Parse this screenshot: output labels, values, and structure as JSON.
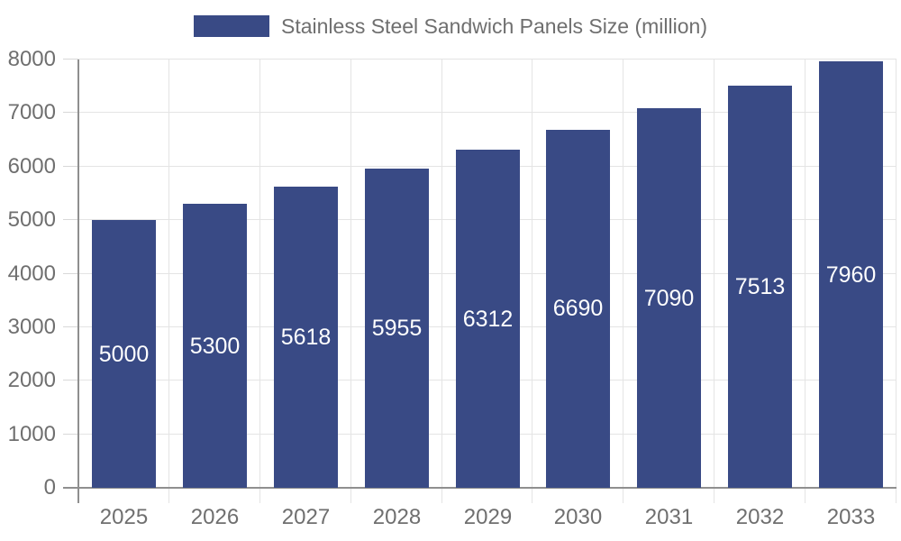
{
  "chart_data": {
    "type": "bar",
    "title": "Stainless Steel Sandwich Panels Size (million)",
    "categories": [
      "2025",
      "2026",
      "2027",
      "2028",
      "2029",
      "2030",
      "2031",
      "2032",
      "2033"
    ],
    "values": [
      5000,
      5300,
      5618,
      5955,
      6312,
      6690,
      7090,
      7513,
      7960
    ],
    "xlabel": "",
    "ylabel": "",
    "ylim": [
      0,
      8000
    ],
    "ytick_step": 1000,
    "grid": true,
    "legend_position": "top-center",
    "value_labels": "centered-inside-bars",
    "colors": {
      "bar": "#394A85",
      "value_label": "#FFFFFF",
      "axis_text": "#6F6F6F",
      "legend_text": "#6F6F6F",
      "grid_line": "#E4E4E4",
      "tick_line": "#D8D8D8",
      "axis_line": "#8F8F8F",
      "background": "#FFFFFF"
    }
  }
}
